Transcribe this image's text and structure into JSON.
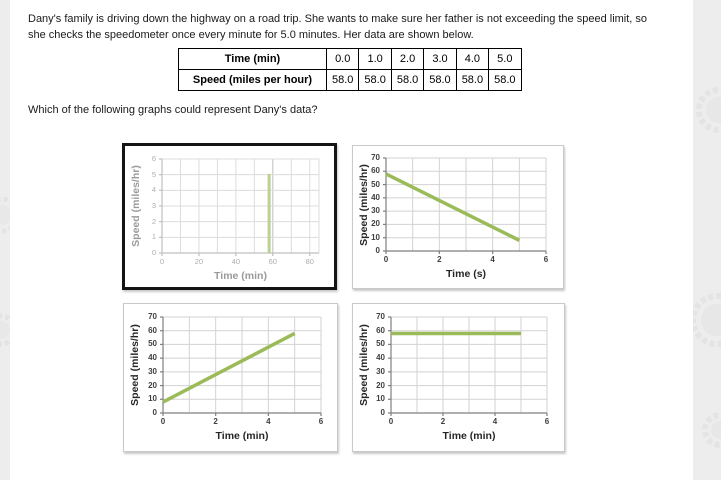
{
  "problem": {
    "lines": [
      "Dany's family is driving down the highway on a road trip. She wants to make sure her father is not exceeding the speed limit, so",
      "she checks the speedometer once every minute for 5.0 minutes. Her data are shown below."
    ],
    "question": "Which of the following graphs could represent Dany's data?"
  },
  "table": {
    "rows": [
      {
        "label": "Time (min)",
        "values": [
          "0.0",
          "1.0",
          "2.0",
          "3.0",
          "4.0",
          "5.0"
        ]
      },
      {
        "label": "Speed (miles per hour)",
        "values": [
          "58.0",
          "58.0",
          "58.0",
          "58.0",
          "58.0",
          "58.0"
        ]
      }
    ]
  },
  "colors": {
    "line_green": "#9bbb59",
    "line_green_muted": "#b9d28f",
    "grid": "#d2d2d2",
    "grid_muted": "#dcdcdc",
    "grid_emphasis": "#bdbdbd",
    "axis": "#7f7f7f",
    "axis_muted": "#bfbfbf",
    "selected_border": "#141414"
  },
  "chart_data": [
    {
      "id": "graph-a",
      "type": "line",
      "selected": true,
      "muted_axes": true,
      "title": "",
      "xlabel": "Time (min)",
      "ylabel": "Speed (miles/hr)",
      "xlim": [
        0,
        85
      ],
      "ylim": [
        0,
        6
      ],
      "xgrid_step": 10,
      "ygrid_step": 1,
      "xticks": [
        0,
        20,
        40,
        60,
        80
      ],
      "yticks": [
        0,
        1,
        2,
        3,
        4,
        5,
        6
      ],
      "x_emphasis_gridline": 60,
      "points": [
        [
          58,
          0
        ],
        [
          58,
          5.05
        ]
      ],
      "description": "vertical line at speed value 58 spanning time 0 to 5 (axes swapped)"
    },
    {
      "id": "graph-b",
      "type": "line",
      "selected": false,
      "muted_axes": false,
      "title": "",
      "xlabel": "Time (s)",
      "ylabel": "Speed (miles/hr)",
      "xlim": [
        0,
        6
      ],
      "ylim": [
        0,
        70
      ],
      "xgrid_step": 1,
      "ygrid_step": 10,
      "xticks": [
        0,
        2,
        4,
        6
      ],
      "yticks": [
        0,
        10,
        20,
        30,
        40,
        50,
        60,
        70
      ],
      "points": [
        [
          0,
          58
        ],
        [
          5,
          8
        ]
      ],
      "description": "line decreasing from (0,58) to (5,8)"
    },
    {
      "id": "graph-c",
      "type": "line",
      "selected": false,
      "muted_axes": false,
      "title": "",
      "xlabel": "Time (min)",
      "ylabel": "Speed (miles/hr)",
      "xlim": [
        0,
        6
      ],
      "ylim": [
        0,
        70
      ],
      "xgrid_step": 1,
      "ygrid_step": 10,
      "xticks": [
        0,
        2,
        4,
        6
      ],
      "yticks": [
        0,
        10,
        20,
        30,
        40,
        50,
        60,
        70
      ],
      "points": [
        [
          0,
          8
        ],
        [
          5,
          58
        ]
      ],
      "description": "line increasing from (0,8) to (5,58)"
    },
    {
      "id": "graph-d",
      "type": "line",
      "selected": false,
      "muted_axes": false,
      "title": "",
      "xlabel": "Time (min)",
      "ylabel": "Speed (miles/hr)",
      "xlim": [
        0,
        6
      ],
      "ylim": [
        0,
        70
      ],
      "xgrid_step": 1,
      "ygrid_step": 10,
      "xticks": [
        0,
        2,
        4,
        6
      ],
      "yticks": [
        0,
        10,
        20,
        30,
        40,
        50,
        60,
        70
      ],
      "points": [
        [
          0,
          58
        ],
        [
          5,
          58
        ]
      ],
      "description": "horizontal line at speed 58 from time 0 to 5"
    }
  ]
}
